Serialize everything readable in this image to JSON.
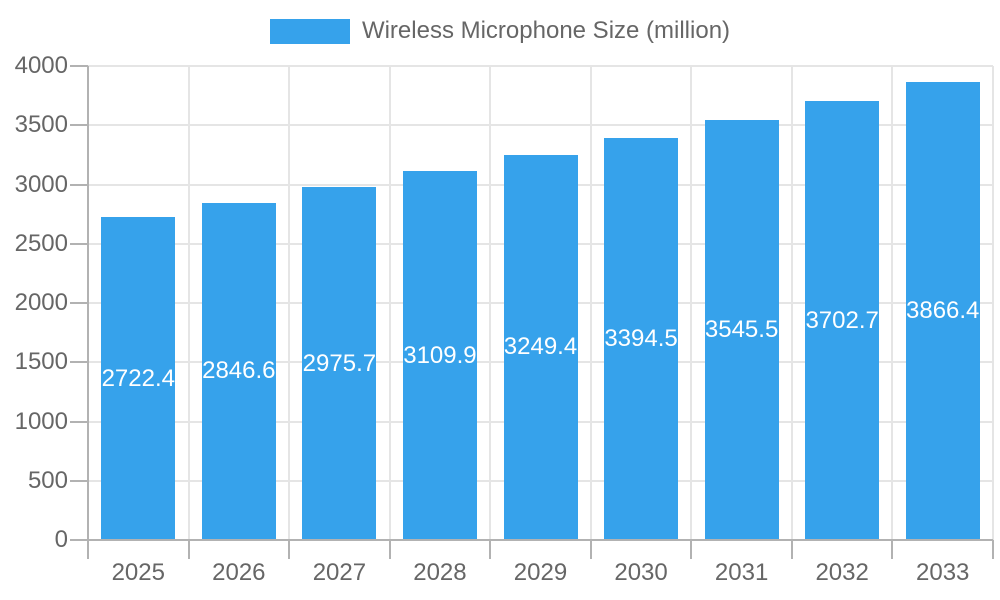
{
  "chart_data": {
    "type": "bar",
    "title": "Wireless Microphone Size (million)",
    "categories": [
      "2025",
      "2026",
      "2027",
      "2028",
      "2029",
      "2030",
      "2031",
      "2032",
      "2033"
    ],
    "values": [
      2722.4,
      2846.6,
      2975.7,
      3109.9,
      3249.4,
      3394.5,
      3545.5,
      3702.7,
      3866.4
    ],
    "value_labels": [
      "2722.4",
      "2846.6",
      "2975.7",
      "3109.9",
      "3249.4",
      "3394.5",
      "3545.5",
      "3702.7",
      "3866.4"
    ],
    "xlabel": "",
    "ylabel": "",
    "ylim": [
      0,
      4000
    ],
    "yticks": [
      0,
      500,
      1000,
      1500,
      2000,
      2500,
      3000,
      3500,
      4000
    ],
    "ytick_labels": [
      "0",
      "500",
      "1000",
      "1500",
      "2000",
      "2500",
      "3000",
      "3500",
      "4000"
    ],
    "grid": true,
    "legend_position": "top",
    "colors": {
      "bar": "#36a2eb",
      "value_label_text": "#ffffff",
      "grid": "#e5e5e5",
      "axis": "#b2b2b2",
      "tick_text": "#666666",
      "legend_text": "#666666"
    }
  }
}
